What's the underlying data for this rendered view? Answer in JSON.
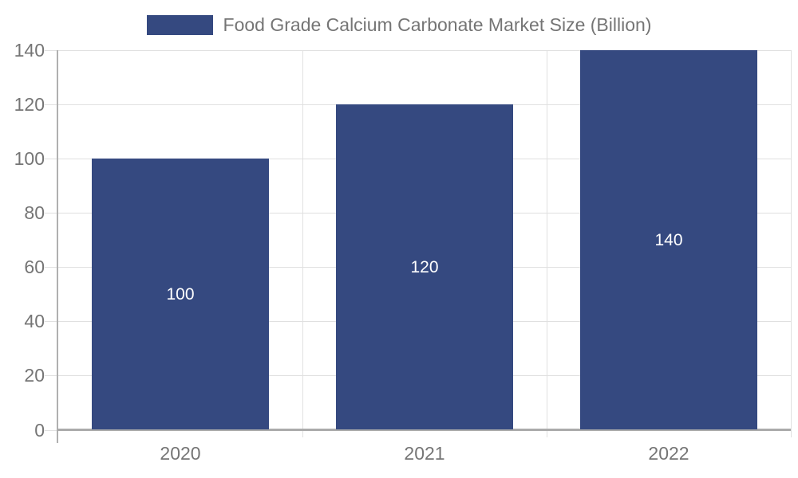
{
  "chart_data": {
    "type": "bar",
    "title": "Food Grade Calcium Carbonate Market Size (Billion)",
    "categories": [
      "2020",
      "2021",
      "2022"
    ],
    "values": [
      100,
      120,
      140
    ],
    "series": [
      {
        "name": "Food Grade Calcium Carbonate Market Size (Billion)",
        "values": [
          100,
          120,
          140
        ]
      }
    ],
    "data_labels": [
      "100",
      "120",
      "140"
    ],
    "xlabel": "",
    "ylabel": "",
    "ylim": [
      0,
      140
    ],
    "yticks": [
      0,
      20,
      40,
      60,
      80,
      100,
      120,
      140
    ],
    "grid": true,
    "legend_position": "top-center",
    "colors": {
      "bar": "#354980",
      "axis_text": "#757575",
      "legend_text": "#757575",
      "grid_line": "#e0e0e0",
      "axis_line": "#b0b0b0",
      "bottom_axis_line": "#ababab",
      "data_label": "#ffffff",
      "background": "#ffffff"
    }
  }
}
